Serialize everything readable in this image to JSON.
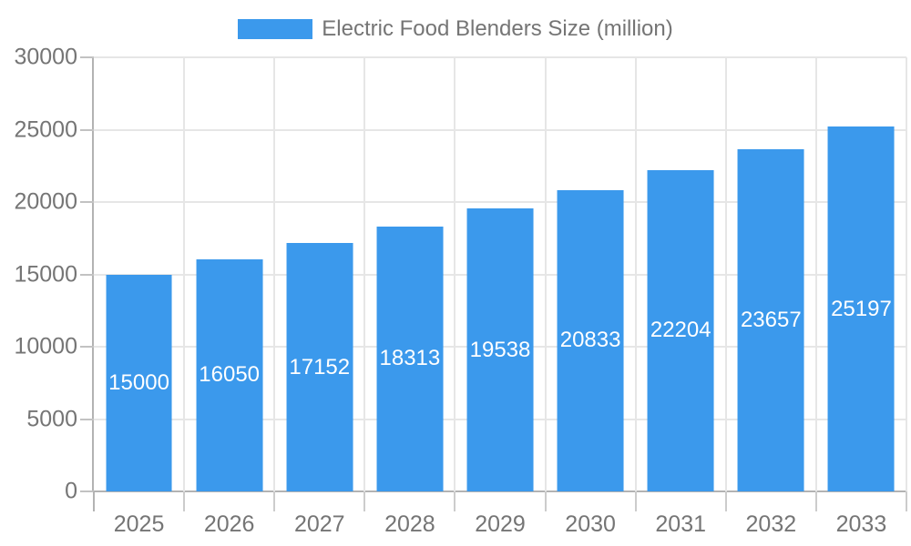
{
  "legend": {
    "label": "Electric Food Blenders Size (million)"
  },
  "chart_data": {
    "type": "bar",
    "title": "Electric Food Blenders Size (million)",
    "categories": [
      "2025",
      "2026",
      "2027",
      "2028",
      "2029",
      "2030",
      "2031",
      "2032",
      "2033"
    ],
    "series": [
      {
        "name": "Electric Food Blenders Size (million)",
        "values": [
          15000,
          16050,
          17152,
          18313,
          19538,
          20833,
          22204,
          23657,
          25197
        ]
      }
    ],
    "data_labels_visible": true,
    "ylim": [
      0,
      30000
    ],
    "yticks": [
      0,
      5000,
      10000,
      15000,
      20000,
      25000,
      30000
    ],
    "grid": "horizontal-and-vertical",
    "legend_position": "top"
  },
  "colors": {
    "bar": "#3b99ec",
    "data_label": "#ffffff",
    "axis_text": "#757575",
    "gridline": "#e6e6e6",
    "axis_line": "#b3b3b3",
    "background": "#ffffff"
  }
}
